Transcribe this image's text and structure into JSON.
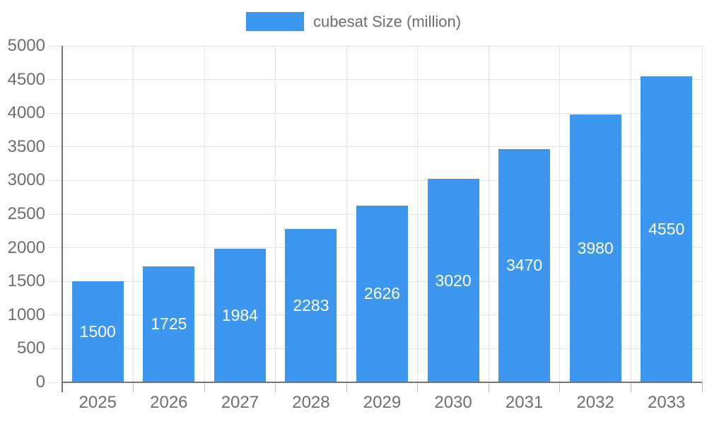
{
  "legend": {
    "label": "cubesat Size (million)"
  },
  "colors": {
    "bar": "#3e97ef",
    "axis_line": "#757575",
    "gridline": "#e4e4e4",
    "tick": "#bdbdbd",
    "axis_text": "#6e6e6e",
    "value_text": "#ffffff",
    "background": "#ffffff"
  },
  "chart_data": {
    "type": "bar",
    "title": "cubesat Size (million)",
    "categories": [
      "2025",
      "2026",
      "2027",
      "2028",
      "2029",
      "2030",
      "2031",
      "2032",
      "2033"
    ],
    "series": [
      {
        "name": "cubesat Size (million)",
        "values": [
          1500,
          1725,
          1984,
          2283,
          2626,
          3020,
          3470,
          3980,
          4550
        ]
      }
    ],
    "bar_value_labels": [
      1500,
      1725,
      1984,
      2283,
      2626,
      3020,
      3470,
      3980,
      4550
    ],
    "xlabel": "",
    "ylabel": "",
    "ylim": [
      0,
      5000
    ],
    "ytick_step": 500,
    "yticks": [
      0,
      500,
      1000,
      1500,
      2000,
      2500,
      3000,
      3500,
      4000,
      4500,
      5000
    ],
    "grid": true,
    "legend_position": "top",
    "bar_label_color": "#ffffff"
  }
}
